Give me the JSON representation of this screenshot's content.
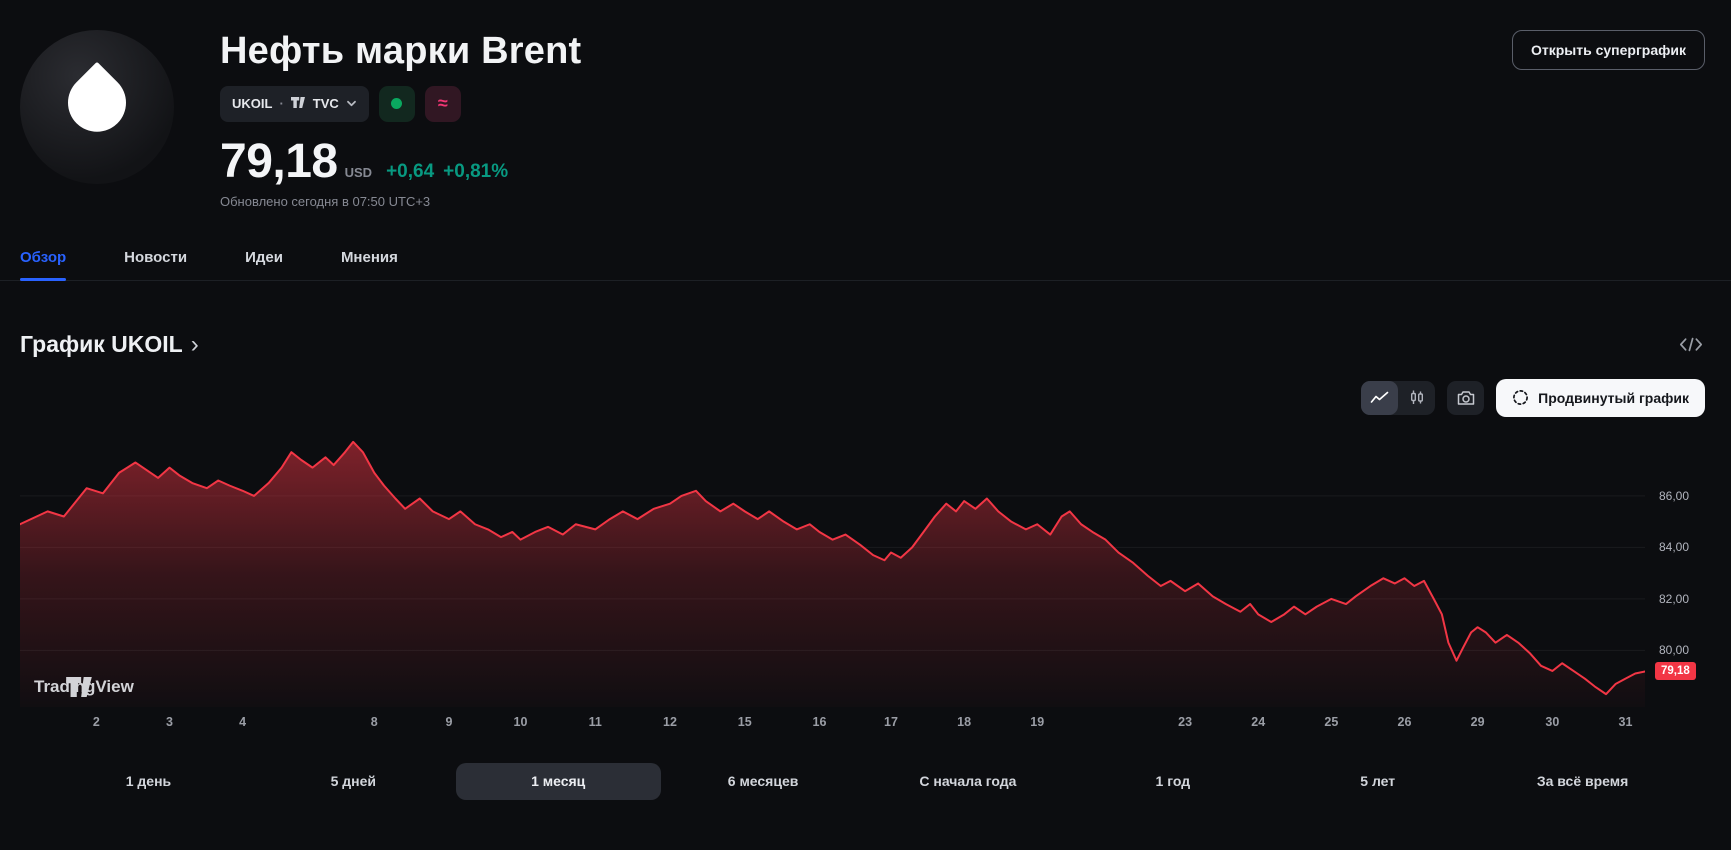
{
  "header": {
    "title": "Нефть марки Brent",
    "symbol": "UKOIL",
    "separator": "·",
    "exchange": "TVC",
    "market_status": "open",
    "price": "79,18",
    "currency": "USD",
    "change_abs": "+0,64",
    "change_pct": "+0,81%",
    "updated": "Обновлено сегодня в 07:50 UTC+3",
    "supergraph_button": "Открыть суперграфик"
  },
  "icons": {
    "waves": "≈"
  },
  "tabs": [
    {
      "label": "Обзор",
      "active": true
    },
    {
      "label": "Новости",
      "active": false
    },
    {
      "label": "Идеи",
      "active": false
    },
    {
      "label": "Мнения",
      "active": false
    }
  ],
  "section": {
    "title": "График UKOIL",
    "chevron": "›",
    "advanced_button": "Продвинутый график"
  },
  "watermark": "TradingView",
  "ranges": [
    {
      "id": "1-day",
      "label": "1 день",
      "active": false
    },
    {
      "id": "5-days",
      "label": "5 дней",
      "active": false
    },
    {
      "id": "1-month",
      "label": "1 месяц",
      "active": true
    },
    {
      "id": "6-months",
      "label": "6 месяцев",
      "active": false
    },
    {
      "id": "ytd",
      "label": "С начала года",
      "active": false
    },
    {
      "id": "1-year",
      "label": "1 год",
      "active": false
    },
    {
      "id": "5-years",
      "label": "5 лет",
      "active": false
    },
    {
      "id": "all-time",
      "label": "За всё время",
      "active": false
    }
  ],
  "colors": {
    "accent_red": "#f23645",
    "accent_green": "#089981",
    "accent_blue": "#2962ff",
    "background": "#0c0d10"
  },
  "chart_data": {
    "type": "area",
    "title": "UKOIL Нефть марки Brent — 1 месяц",
    "ylabel": "USD",
    "ylim": [
      77.8,
      88.6
    ],
    "grid": true,
    "legend": "none",
    "line_color": "#f23645",
    "last_price": {
      "label": "79,18",
      "value": 79.18
    },
    "gridlines": [
      {
        "label": "86,00",
        "value": 86
      },
      {
        "label": "84,00",
        "value": 84
      },
      {
        "label": "82,00",
        "value": 82
      },
      {
        "label": "80,00",
        "value": 80
      }
    ],
    "x_ticks": [
      {
        "label": "2",
        "pos": 4.7
      },
      {
        "label": "3",
        "pos": 9.2
      },
      {
        "label": "4",
        "pos": 13.7
      },
      {
        "label": "8",
        "pos": 21.8
      },
      {
        "label": "9",
        "pos": 26.4
      },
      {
        "label": "10",
        "pos": 30.8
      },
      {
        "label": "11",
        "pos": 35.4
      },
      {
        "label": "12",
        "pos": 40.0
      },
      {
        "label": "15",
        "pos": 44.6
      },
      {
        "label": "16",
        "pos": 49.2
      },
      {
        "label": "17",
        "pos": 53.6
      },
      {
        "label": "18",
        "pos": 58.1
      },
      {
        "label": "19",
        "pos": 62.6
      },
      {
        "label": "23",
        "pos": 71.7
      },
      {
        "label": "24",
        "pos": 76.2
      },
      {
        "label": "25",
        "pos": 80.7
      },
      {
        "label": "26",
        "pos": 85.2
      },
      {
        "label": "29",
        "pos": 89.7
      },
      {
        "label": "30",
        "pos": 94.3
      },
      {
        "label": "31",
        "pos": 98.8
      }
    ],
    "points": [
      [
        0,
        84.9
      ],
      [
        1.7,
        85.4
      ],
      [
        2.7,
        85.2
      ],
      [
        4.1,
        86.3
      ],
      [
        5.1,
        86.1
      ],
      [
        6.1,
        86.9
      ],
      [
        7.1,
        87.3
      ],
      [
        7.8,
        87.0
      ],
      [
        8.5,
        86.7
      ],
      [
        9.2,
        87.1
      ],
      [
        9.8,
        86.8
      ],
      [
        10.6,
        86.5
      ],
      [
        11.5,
        86.3
      ],
      [
        12.2,
        86.6
      ],
      [
        12.9,
        86.4
      ],
      [
        13.7,
        86.2
      ],
      [
        14.4,
        86.0
      ],
      [
        15.3,
        86.5
      ],
      [
        16.1,
        87.1
      ],
      [
        16.7,
        87.7
      ],
      [
        17.3,
        87.4
      ],
      [
        18.0,
        87.1
      ],
      [
        18.8,
        87.5
      ],
      [
        19.3,
        87.2
      ],
      [
        20.0,
        87.7
      ],
      [
        20.5,
        88.1
      ],
      [
        21.1,
        87.7
      ],
      [
        21.8,
        86.9
      ],
      [
        22.4,
        86.4
      ],
      [
        23.1,
        85.9
      ],
      [
        23.7,
        85.5
      ],
      [
        24.6,
        85.9
      ],
      [
        25.4,
        85.4
      ],
      [
        26.4,
        85.1
      ],
      [
        27.1,
        85.4
      ],
      [
        28.0,
        84.9
      ],
      [
        28.8,
        84.7
      ],
      [
        29.6,
        84.4
      ],
      [
        30.3,
        84.6
      ],
      [
        30.8,
        84.3
      ],
      [
        31.7,
        84.6
      ],
      [
        32.5,
        84.8
      ],
      [
        33.4,
        84.5
      ],
      [
        34.2,
        84.9
      ],
      [
        35.4,
        84.7
      ],
      [
        36.3,
        85.1
      ],
      [
        37.1,
        85.4
      ],
      [
        38.0,
        85.1
      ],
      [
        39.0,
        85.5
      ],
      [
        40.0,
        85.7
      ],
      [
        40.7,
        86.0
      ],
      [
        41.6,
        86.2
      ],
      [
        42.2,
        85.8
      ],
      [
        43.1,
        85.4
      ],
      [
        43.9,
        85.7
      ],
      [
        44.6,
        85.4
      ],
      [
        45.4,
        85.1
      ],
      [
        46.1,
        85.4
      ],
      [
        47.0,
        85.0
      ],
      [
        47.8,
        84.7
      ],
      [
        48.6,
        84.9
      ],
      [
        49.2,
        84.6
      ],
      [
        50.0,
        84.3
      ],
      [
        50.8,
        84.5
      ],
      [
        51.7,
        84.1
      ],
      [
        52.5,
        83.7
      ],
      [
        53.2,
        83.5
      ],
      [
        53.6,
        83.8
      ],
      [
        54.2,
        83.6
      ],
      [
        54.9,
        84.0
      ],
      [
        55.6,
        84.6
      ],
      [
        56.3,
        85.2
      ],
      [
        57.0,
        85.7
      ],
      [
        57.6,
        85.4
      ],
      [
        58.1,
        85.8
      ],
      [
        58.8,
        85.5
      ],
      [
        59.5,
        85.9
      ],
      [
        60.2,
        85.4
      ],
      [
        61.0,
        85.0
      ],
      [
        61.9,
        84.7
      ],
      [
        62.6,
        84.9
      ],
      [
        63.4,
        84.5
      ],
      [
        64.1,
        85.2
      ],
      [
        64.6,
        85.4
      ],
      [
        65.3,
        84.9
      ],
      [
        66.0,
        84.6
      ],
      [
        66.8,
        84.3
      ],
      [
        67.6,
        83.8
      ],
      [
        68.5,
        83.4
      ],
      [
        69.4,
        82.9
      ],
      [
        70.2,
        82.5
      ],
      [
        70.8,
        82.7
      ],
      [
        71.7,
        82.3
      ],
      [
        72.5,
        82.6
      ],
      [
        73.4,
        82.1
      ],
      [
        74.2,
        81.8
      ],
      [
        75.1,
        81.5
      ],
      [
        75.7,
        81.8
      ],
      [
        76.2,
        81.4
      ],
      [
        77.0,
        81.1
      ],
      [
        77.8,
        81.4
      ],
      [
        78.4,
        81.7
      ],
      [
        79.1,
        81.4
      ],
      [
        79.8,
        81.7
      ],
      [
        80.7,
        82.0
      ],
      [
        81.6,
        81.8
      ],
      [
        82.2,
        82.1
      ],
      [
        83.1,
        82.5
      ],
      [
        83.9,
        82.8
      ],
      [
        84.6,
        82.6
      ],
      [
        85.2,
        82.8
      ],
      [
        85.8,
        82.5
      ],
      [
        86.4,
        82.7
      ],
      [
        87.0,
        82.0
      ],
      [
        87.5,
        81.4
      ],
      [
        87.9,
        80.3
      ],
      [
        88.4,
        79.6
      ],
      [
        88.8,
        80.1
      ],
      [
        89.3,
        80.7
      ],
      [
        89.7,
        80.9
      ],
      [
        90.2,
        80.7
      ],
      [
        90.8,
        80.3
      ],
      [
        91.5,
        80.6
      ],
      [
        92.2,
        80.3
      ],
      [
        92.9,
        79.9
      ],
      [
        93.6,
        79.4
      ],
      [
        94.3,
        79.2
      ],
      [
        94.9,
        79.5
      ],
      [
        95.6,
        79.2
      ],
      [
        96.3,
        78.9
      ],
      [
        96.9,
        78.6
      ],
      [
        97.6,
        78.3
      ],
      [
        98.2,
        78.7
      ],
      [
        98.8,
        78.9
      ],
      [
        99.4,
        79.1
      ],
      [
        100,
        79.18
      ]
    ]
  }
}
